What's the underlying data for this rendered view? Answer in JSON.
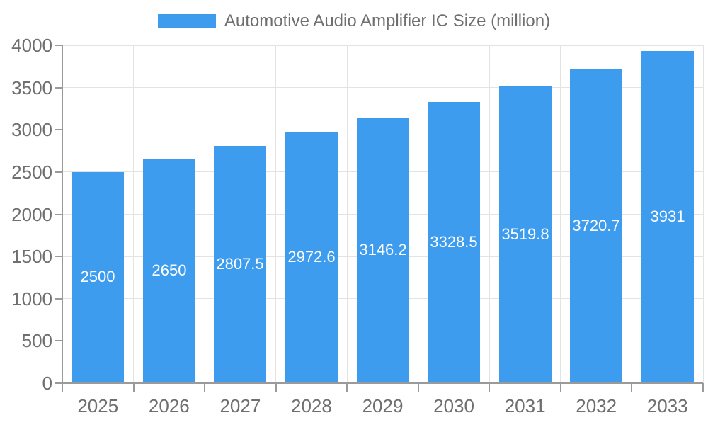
{
  "chart_data": {
    "type": "bar",
    "title": "Automotive Audio Amplifier IC Size (million)",
    "categories": [
      "2025",
      "2026",
      "2027",
      "2028",
      "2029",
      "2030",
      "2031",
      "2032",
      "2033"
    ],
    "values": [
      2500,
      2650,
      2807.5,
      2972.6,
      3146.2,
      3328.5,
      3519.8,
      3720.7,
      3931
    ],
    "xlabel": "",
    "ylabel": "",
    "ylim": [
      0,
      4000
    ],
    "y_ticks": [
      0,
      500,
      1000,
      1500,
      2000,
      2500,
      3000,
      3500,
      4000
    ],
    "grid": true,
    "legend_position": "top-center",
    "value_label_position": "inside-center"
  },
  "legend": {
    "label": "Automotive Audio Amplifier IC Size (million)",
    "swatch_icon": "legend-color-swatch"
  },
  "colors": {
    "bar": "#3D9CEE",
    "axis_line": "#9A9A9A",
    "gridline": "#E3E3E3",
    "label_text": "#6F6F6F",
    "bar_value_text": "#FFFFFF",
    "background": "#FFFFFF"
  }
}
